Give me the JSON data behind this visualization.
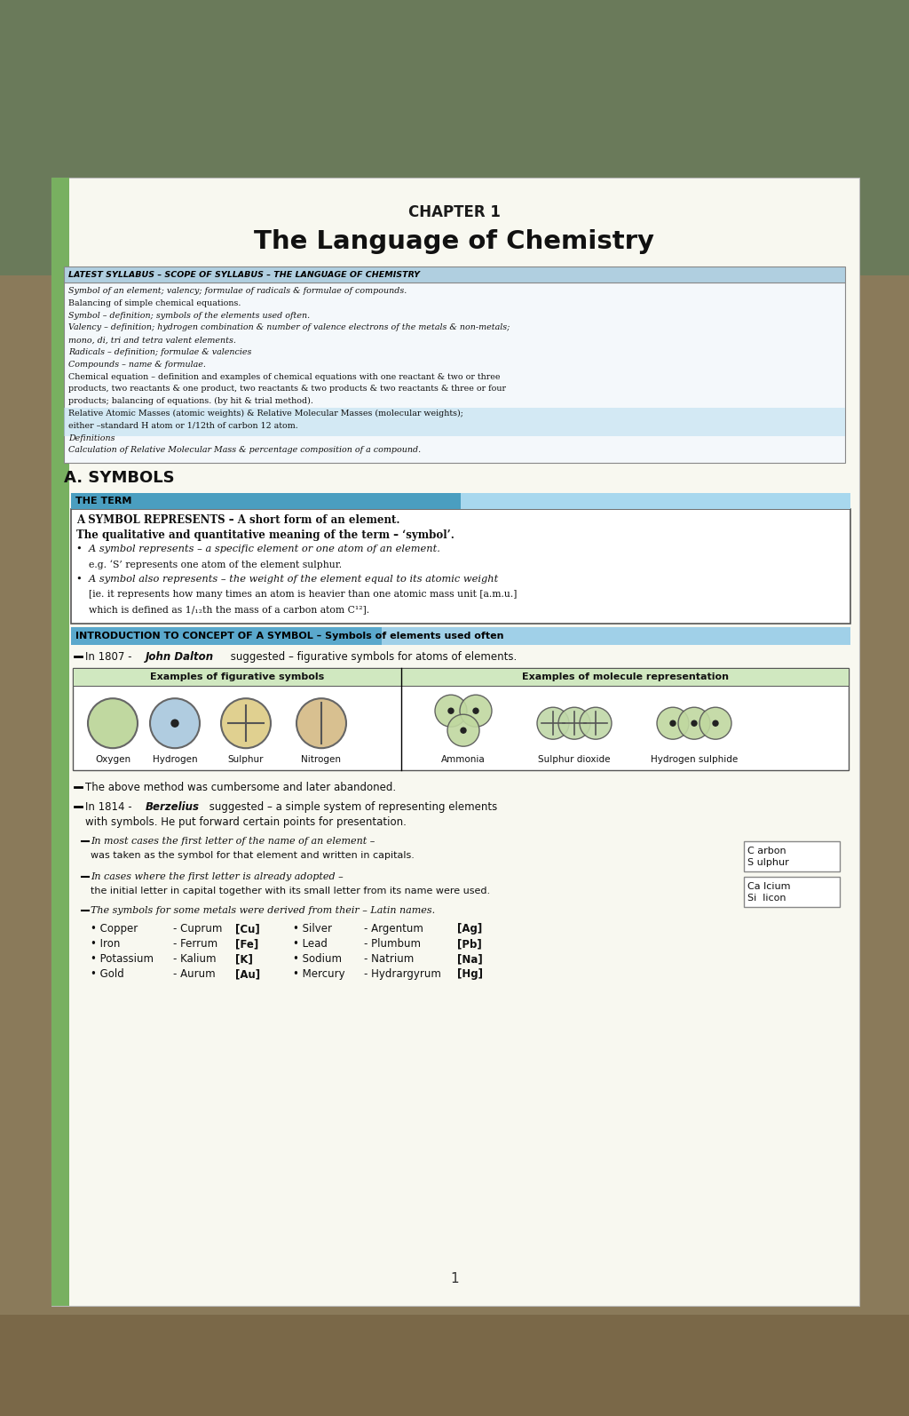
{
  "chapter": "CHAPTER 1",
  "title": "The Language of Chemistry",
  "page_number": "1",
  "syllabus_header": "LATEST SYLLABUS – SCOPE OF SYLLABUS – THE LANGUAGE OF CHEMISTRY",
  "syllabus_lines": [
    "Symbol of an element; valency; formulae of radicals & formulae of compounds.",
    "Balancing of simple chemical equations.",
    "Symbol – definition; symbols of the elements used often.",
    "Valency – definition; hydrogen combination & number of valence electrons of the metals & non-metals;",
    "mono, di, tri and tetra valent elements.",
    "Radicals – definition; formulae & valencies",
    "Compounds – name & formulae.",
    "Chemical equation – definition and examples of chemical equations with one reactant & two or three",
    "products, two reactants & one product, two reactants & two products & two reactants & three or four",
    "products; balancing of equations. (by hit & trial method).",
    "Relative Atomic Masses (atomic weights) & Relative Molecular Masses (molecular weights);",
    "either –standard H atom or 1/12th of carbon 12 atom.",
    "Definitions",
    "Calculation of Relative Molecular Mass & percentage composition of a compound."
  ],
  "section_a": "A. SYMBOLS",
  "term_header": "THE TERM",
  "intro_header": "INTRODUCTION TO CONCEPT OF A SYMBOL – Symbols of elements used often",
  "table_header1": "Examples of figurative symbols",
  "table_header2": "Examples of molecule representation",
  "fig_symbols": [
    "Oxygen",
    "Hydrogen",
    "Sulphur",
    "Nitrogen"
  ],
  "mol_symbols": [
    "Ammonia",
    "Sulphur dioxide",
    "Hydrogen sulphide"
  ],
  "abandoned_text": "The above method was cumbersome and later abandoned.",
  "point1_italic": "In most cases the first letter of the name of an element –",
  "point1_text": "was taken as the symbol for that element and written in capitals.",
  "point1_box": [
    "C arbon",
    "S ulphur"
  ],
  "point2_italic": "In cases where the first letter is already adopted –",
  "point2_text": "the initial letter in capital together with its small letter from its name were used.",
  "point2_box": [
    "Ca lcium",
    "Si  licon"
  ],
  "point3_italic": "The symbols for some metals were derived from their – Latin names.",
  "metals_table": [
    [
      "• Copper",
      "- Cuprum",
      "[Cu]",
      "• Silver",
      "- Argentum",
      "[Ag]"
    ],
    [
      "• Iron",
      "- Ferrum",
      "[Fe]",
      "• Lead",
      "- Plumbum",
      "[Pb]"
    ],
    [
      "• Potassium",
      "- Kalium",
      "[K]",
      "• Sodium",
      "- Natrium",
      "[Na]"
    ],
    [
      "• Gold",
      "- Aurum",
      "[Au]",
      "• Mercury",
      "- Hydrargyrum",
      "[Hg]"
    ]
  ],
  "outer_bg": "#8a7a5a",
  "top_fabric_color": "#6a7a5a",
  "page_color": "#f8f8f0",
  "spine_color": "#78b060"
}
